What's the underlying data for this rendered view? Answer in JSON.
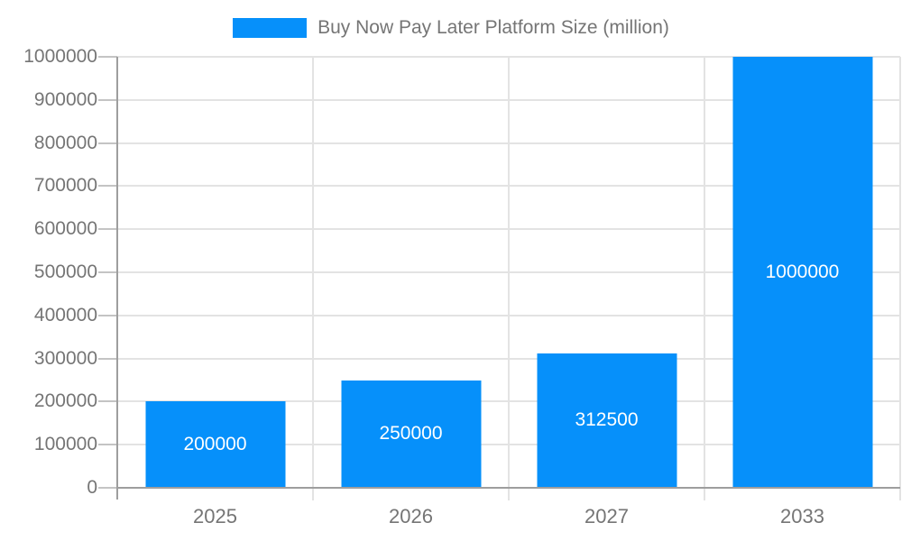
{
  "chart_data": {
    "type": "bar",
    "title": "Buy Now Pay Later Platform Size (million)",
    "legend": {
      "label": "Buy Now Pay Later Platform Size (million)",
      "position": "top"
    },
    "categories": [
      "2025",
      "2026",
      "2027",
      "2033"
    ],
    "series": [
      {
        "name": "Buy Now Pay Later Platform Size (million)",
        "values": [
          200000,
          250000,
          312500,
          1000000
        ]
      }
    ],
    "bar_value_labels": [
      "200000",
      "250000",
      "312500",
      "1000000"
    ],
    "xlabel": "",
    "ylabel": "",
    "ylim": [
      0,
      1000000
    ],
    "ytick_interval": 100000,
    "ytick_labels": [
      "0",
      "100000",
      "200000",
      "300000",
      "400000",
      "500000",
      "600000",
      "700000",
      "800000",
      "900000",
      "1000000"
    ],
    "grid": true,
    "colors": {
      "bar": "#0690fa",
      "axis_text": "#757575",
      "bar_label_text": "#ffffff",
      "gridline": "#e3e3e3",
      "axis_line": "#9e9e9e",
      "tick": "#c4c4c4",
      "background": "#ffffff"
    }
  }
}
